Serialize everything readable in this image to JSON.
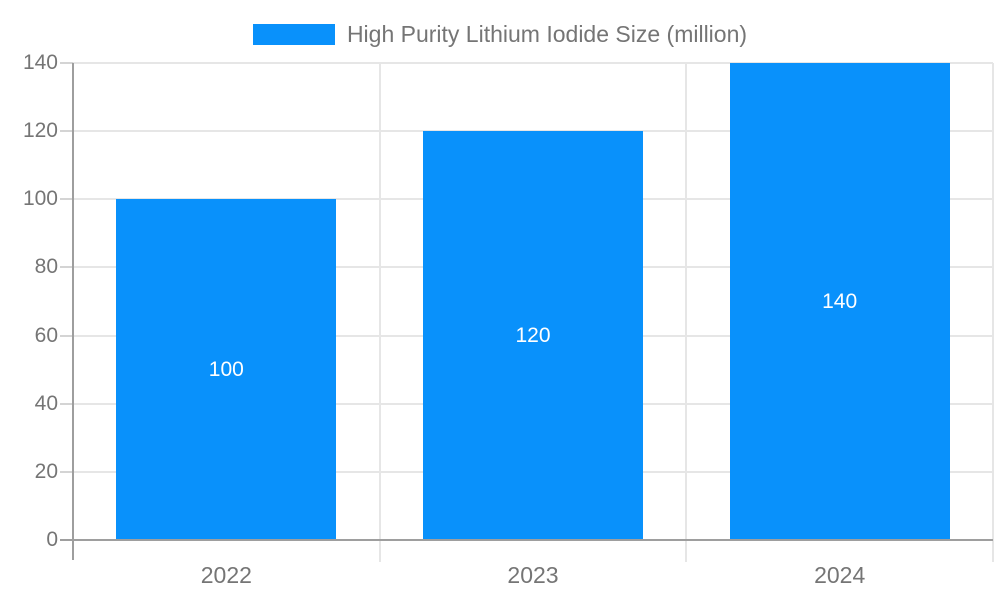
{
  "chart_data": {
    "type": "bar",
    "title": "High Purity Lithium Iodide Size (million)",
    "categories": [
      "2022",
      "2023",
      "2024"
    ],
    "series": [
      {
        "name": "High Purity Lithium Iodide Size (million)",
        "values": [
          100,
          120,
          140
        ]
      }
    ],
    "values": [
      100,
      120,
      140
    ],
    "data_labels": [
      "100",
      "120",
      "140"
    ],
    "xlabel": "",
    "ylabel": "",
    "ylim": [
      0,
      140
    ],
    "ytick_interval": 20,
    "yticks": [
      0,
      20,
      40,
      60,
      80,
      100,
      120,
      140
    ],
    "ytick_labels": [
      "0",
      "20",
      "40",
      "60",
      "80",
      "100",
      "120",
      "140"
    ],
    "grid": true,
    "legend_position": "top-center",
    "bar_color": "#0991fb",
    "data_label_color": "#ffffff",
    "axis_line_color": "#9e9e9e",
    "gridline_color": "#e6e6e6",
    "text_color": "#757575",
    "background_color": "#ffffff"
  }
}
